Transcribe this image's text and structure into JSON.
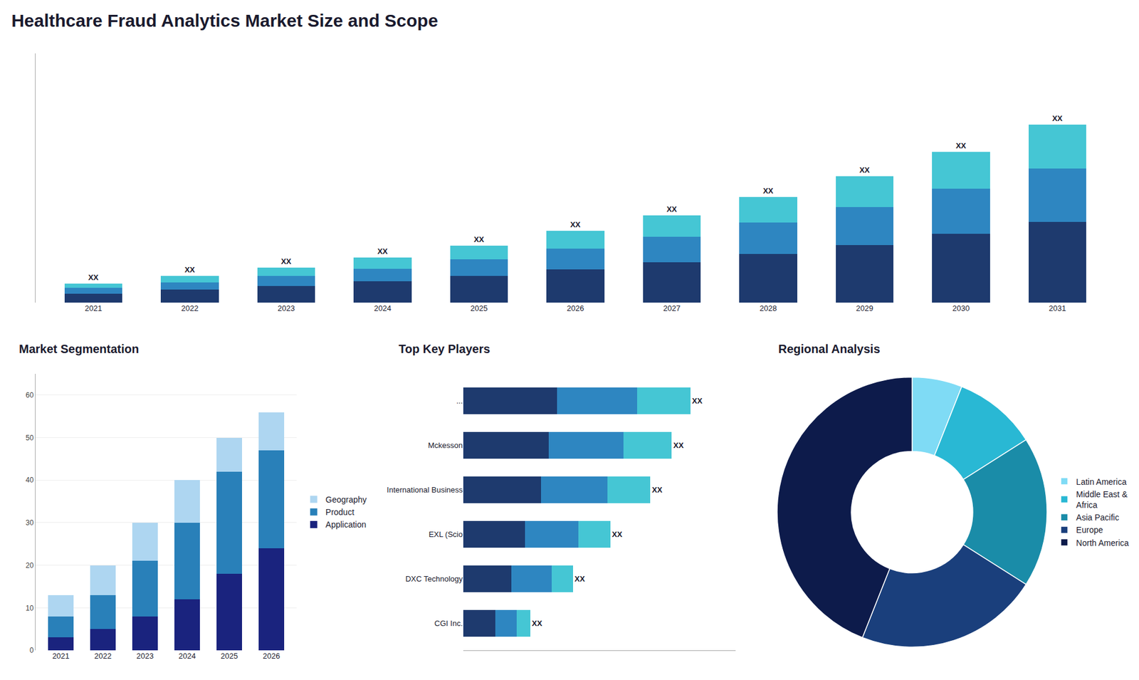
{
  "chart_data": [
    {
      "type": "bar",
      "stacked": true,
      "title": "Healthcare Fraud Analytics Market Size and Scope",
      "categories": [
        "2021",
        "2022",
        "2023",
        "2024",
        "2025",
        "2026",
        "2027",
        "2028",
        "2029",
        "2030",
        "2031"
      ],
      "series": [
        {
          "color": "#1e3a6e",
          "values": [
            1.0,
            1.4,
            1.8,
            2.3,
            2.9,
            3.6,
            4.4,
            5.3,
            6.3,
            7.5,
            8.8
          ]
        },
        {
          "color": "#2e86c1",
          "values": [
            0.6,
            0.8,
            1.1,
            1.4,
            1.8,
            2.3,
            2.8,
            3.4,
            4.1,
            4.9,
            5.8
          ]
        },
        {
          "color": "#45c6d4",
          "values": [
            0.5,
            0.7,
            0.9,
            1.2,
            1.5,
            1.9,
            2.3,
            2.8,
            3.4,
            4.0,
            4.8
          ],
          "value_labels": [
            "XX",
            "XX",
            "XX",
            "XX",
            "XX",
            "XX",
            "XX",
            "XX",
            "XX",
            "XX",
            "XX"
          ]
        }
      ],
      "ylim": [
        0,
        27.16
      ],
      "grid": false,
      "tick_labels": "x"
    },
    {
      "type": "bar",
      "stacked": true,
      "title": "Market Segmentation",
      "categories": [
        "2021",
        "2022",
        "2023",
        "2024",
        "2025",
        "2026"
      ],
      "series": [
        {
          "name": "Application",
          "color": "#1a237e",
          "values": [
            3,
            5,
            8,
            12,
            18,
            24
          ]
        },
        {
          "name": "Product",
          "color": "#2980b9",
          "values": [
            5,
            8,
            13,
            18,
            24,
            23
          ]
        },
        {
          "name": "Geography",
          "color": "#aed6f1",
          "values": [
            5,
            7,
            9,
            10,
            8,
            9
          ]
        }
      ],
      "ylim": [
        0,
        65
      ],
      "yticks": [
        0,
        10,
        20,
        30,
        40,
        50,
        60
      ],
      "grid": true,
      "legend": "right"
    },
    {
      "type": "bar",
      "stacked": true,
      "orientation": "horizontal",
      "title": "Top Key Players",
      "categories": [
        "...",
        "Mckesson",
        "International Business",
        "EXL (Scio",
        "DXC Technology",
        "CGI Inc."
      ],
      "series": [
        {
          "color": "#1e3a6e",
          "values": [
            3.5,
            3.2,
            2.9,
            2.3,
            1.8,
            1.2
          ]
        },
        {
          "color": "#2e86c1",
          "values": [
            3.0,
            2.8,
            2.5,
            2.0,
            1.5,
            0.8
          ]
        },
        {
          "color": "#45c6d4",
          "values": [
            2.0,
            1.8,
            1.6,
            1.2,
            0.8,
            0.5
          ],
          "value_labels": [
            "XX",
            "XX",
            "XX",
            "XX",
            "XX",
            "XX"
          ]
        }
      ],
      "xlim": [
        0,
        10.2
      ],
      "grid": false,
      "tick_labels": "y"
    },
    {
      "type": "pie",
      "title": "Regional Analysis",
      "categories": [
        "Latin America",
        "Middle East &\nAfrica",
        "Asia Pacific",
        "Europe",
        "North America"
      ],
      "values": [
        6,
        10,
        18,
        22,
        44
      ],
      "colors": [
        "#7fdbf5",
        "#29b8d4",
        "#1a8ca8",
        "#1a3f7c",
        "#0d1b4b"
      ],
      "legend": "right"
    }
  ]
}
